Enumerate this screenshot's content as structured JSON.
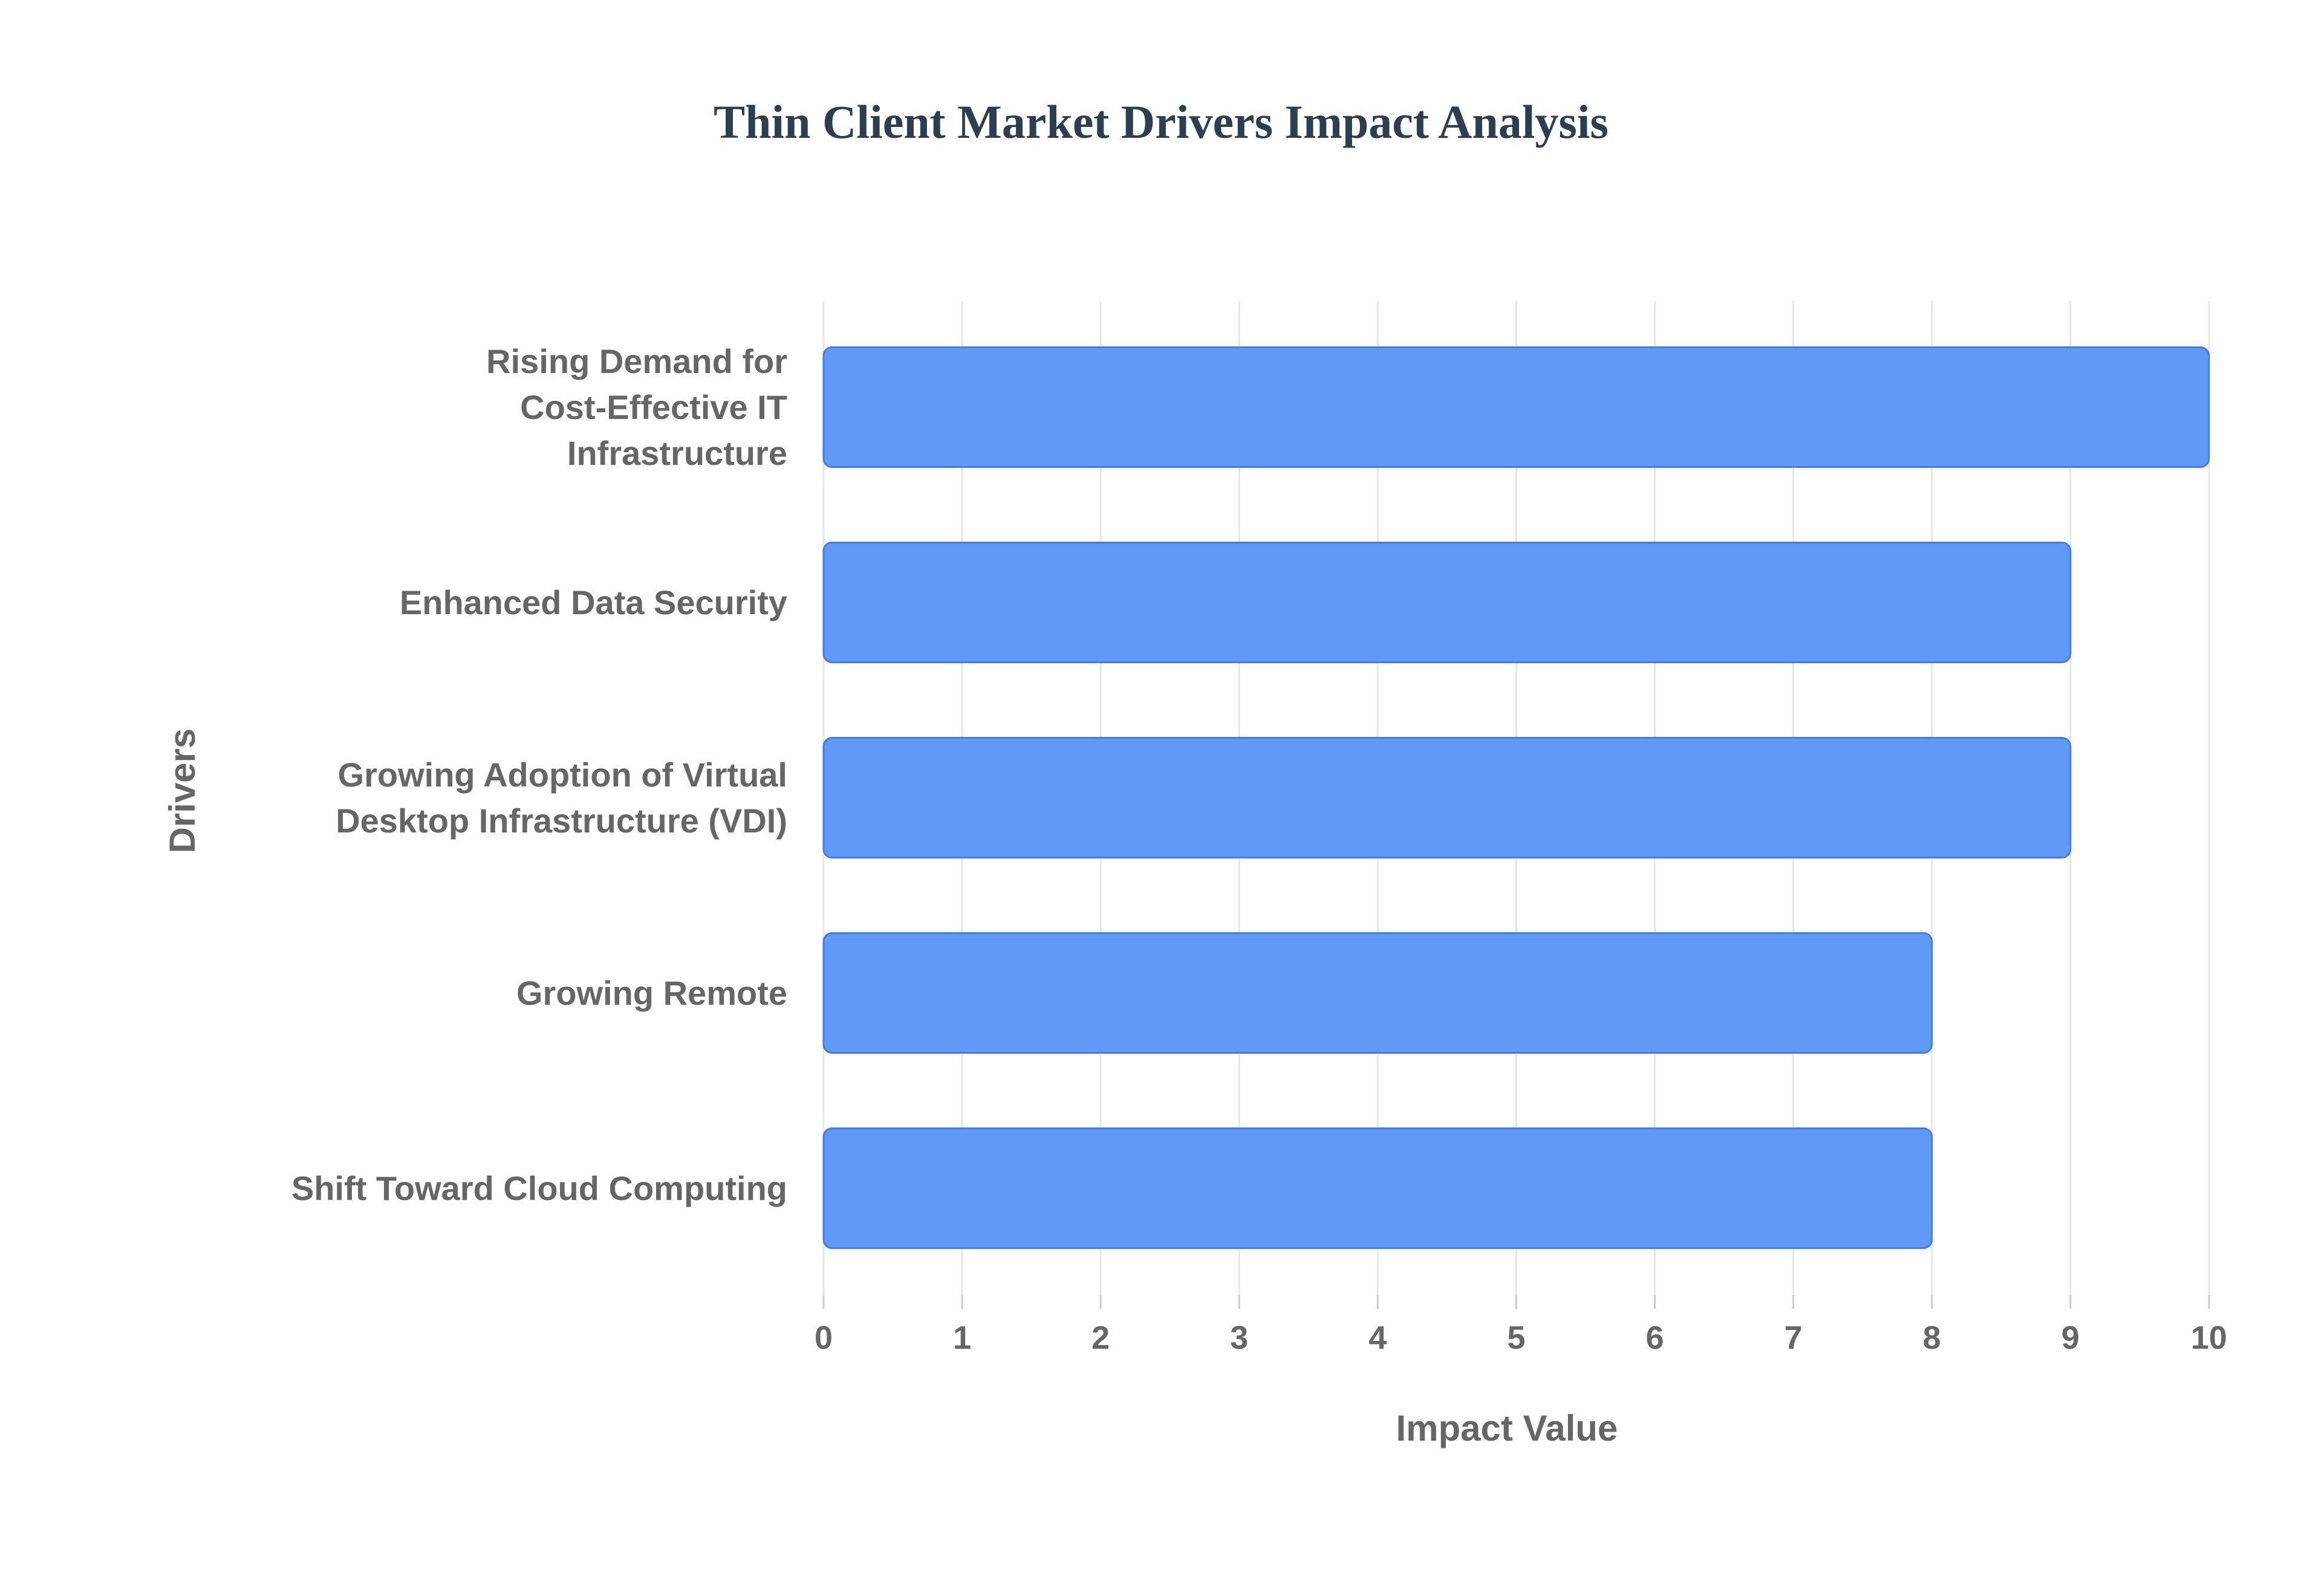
{
  "chart_data": {
    "type": "bar",
    "orientation": "horizontal",
    "title": "Thin Client Market Drivers Impact Analysis",
    "xlabel": "Impact Value",
    "ylabel": "Drivers",
    "categories": [
      [
        "Rising Demand for",
        "Cost-Effective IT",
        "Infrastructure"
      ],
      [
        "Enhanced Data Security"
      ],
      [
        "Growing Adoption of Virtual",
        "Desktop Infrastructure (VDI)"
      ],
      [
        "Growing Remote"
      ],
      [
        "Shift Toward Cloud Computing"
      ]
    ],
    "values": [
      10,
      9,
      9,
      8,
      8
    ],
    "xlim": [
      0,
      10
    ],
    "xticks": [
      "0",
      "1",
      "2",
      "3",
      "4",
      "5",
      "6",
      "7",
      "8",
      "9",
      "10"
    ],
    "grid": true,
    "legend": "none",
    "colors": {
      "bar_fill": "#6199f6",
      "bar_stroke": "#3f7ee8"
    }
  }
}
